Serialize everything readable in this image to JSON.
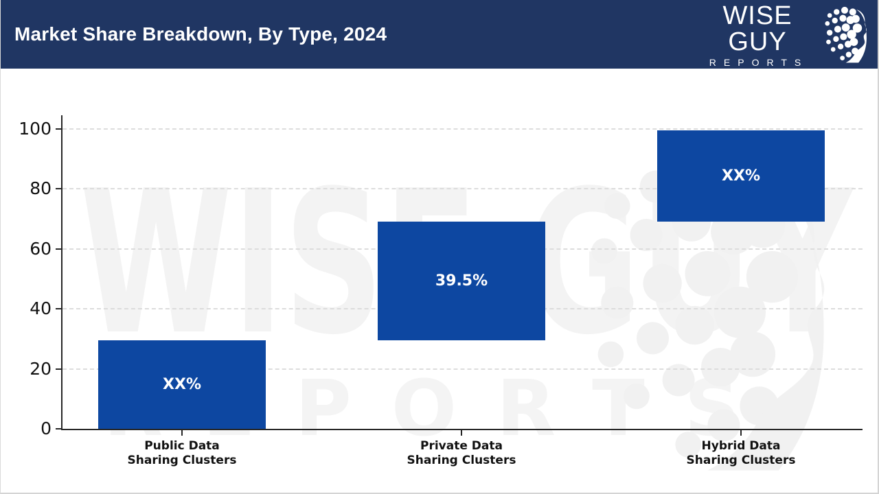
{
  "header": {
    "title": "Market Share Breakdown, By Type, 2024",
    "logo": {
      "line1": "WISE GUY",
      "line2": "REPORTS"
    }
  },
  "watermark": {
    "line1": "WISE GUY",
    "line2": "REPORTS"
  },
  "colors": {
    "header_bg": "#203663",
    "bar_fill": "#0d47a1",
    "bar_label": "#ffffff",
    "gridline": "#dcdcdc",
    "axis": "#262626",
    "watermark": "#f3f3f3",
    "frame_border": "#d4d4d4"
  },
  "chart_data": {
    "type": "bar",
    "subtype": "floating-segment-waterfall",
    "title": "Market Share Breakdown, By Type, 2024",
    "categories": [
      "Public Data\nSharing Clusters",
      "Private Data\nSharing Clusters",
      "Hybrid Data\nSharing Clusters"
    ],
    "segments": [
      {
        "category": "Public Data Sharing Clusters",
        "start": 0,
        "end": 29.5,
        "label": "XX%"
      },
      {
        "category": "Private Data Sharing Clusters",
        "start": 29.5,
        "end": 69,
        "label": "39.5%"
      },
      {
        "category": "Hybrid Data Sharing Clusters",
        "start": 69,
        "end": 99.5,
        "label": "XX%"
      }
    ],
    "y_ticks": [
      0,
      20,
      40,
      60,
      80,
      100
    ],
    "ylim": [
      0,
      104
    ],
    "xlabel": "",
    "ylabel": "",
    "grid": "horizontal-dashed",
    "legend": "none",
    "bar_color": "#0d47a1",
    "bar_label_color": "#ffffff"
  }
}
